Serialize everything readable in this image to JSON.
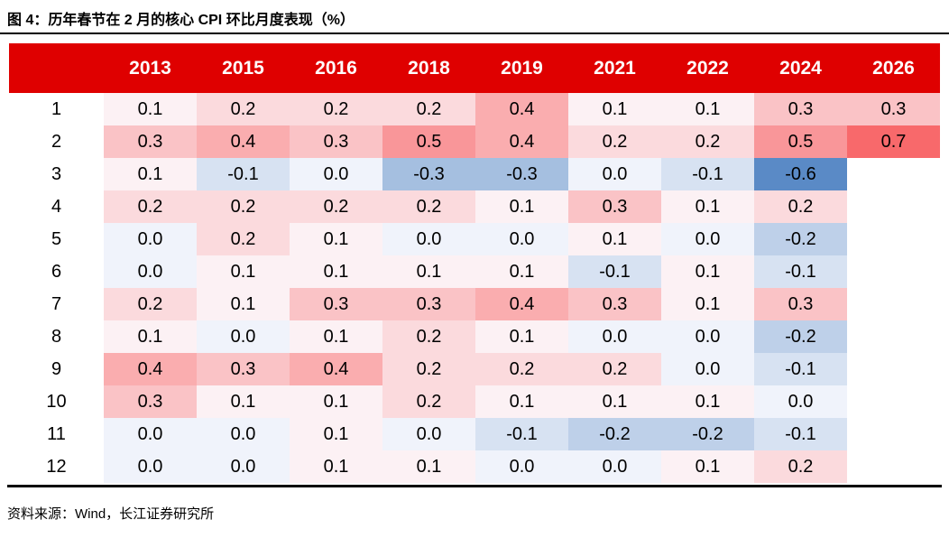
{
  "header": {
    "title": "图 4：历年春节在 2 月的核心 CPI 环比月度表现（%）"
  },
  "footer": {
    "source": "资料来源：Wind，长江证券研究所"
  },
  "theme": {
    "page_bg": "#FFFFFF",
    "title_text": "#000000",
    "rule_color": "#000000",
    "header_bg": "#DF0000",
    "header_text": "#FFFFFF",
    "cell_text": "#000000"
  },
  "chart_data": {
    "type": "heatmap",
    "figure_label": "图 4",
    "title": "历年春节在 2 月的核心 CPI 环比月度表现（%）",
    "unit": "%",
    "columns": [
      "2013",
      "2015",
      "2016",
      "2018",
      "2019",
      "2021",
      "2022",
      "2024",
      "2026"
    ],
    "row_labels": [
      "1",
      "2",
      "3",
      "4",
      "5",
      "6",
      "7",
      "8",
      "9",
      "10",
      "11",
      "12"
    ],
    "values": [
      [
        0.1,
        0.2,
        0.2,
        0.2,
        0.4,
        0.1,
        0.1,
        0.3,
        0.3
      ],
      [
        0.3,
        0.4,
        0.3,
        0.5,
        0.4,
        0.2,
        0.2,
        0.5,
        0.7
      ],
      [
        0.1,
        -0.1,
        0.0,
        -0.3,
        -0.3,
        0.0,
        -0.1,
        -0.6,
        null
      ],
      [
        0.2,
        0.2,
        0.2,
        0.2,
        0.1,
        0.3,
        0.1,
        0.2,
        null
      ],
      [
        0.0,
        0.2,
        0.1,
        0.0,
        0.0,
        0.1,
        0.0,
        -0.2,
        null
      ],
      [
        0.0,
        0.1,
        0.1,
        0.1,
        0.1,
        -0.1,
        0.1,
        -0.1,
        null
      ],
      [
        0.2,
        0.1,
        0.3,
        0.3,
        0.4,
        0.3,
        0.1,
        0.3,
        null
      ],
      [
        0.1,
        0.0,
        0.1,
        0.2,
        0.1,
        0.0,
        0.0,
        -0.2,
        null
      ],
      [
        0.4,
        0.3,
        0.4,
        0.2,
        0.2,
        0.2,
        0.0,
        -0.1,
        null
      ],
      [
        0.3,
        0.1,
        0.1,
        0.2,
        0.1,
        0.1,
        0.1,
        0.0,
        null
      ],
      [
        0.0,
        0.0,
        0.1,
        0.0,
        -0.1,
        -0.2,
        -0.2,
        -0.1,
        null
      ],
      [
        0.0,
        0.0,
        0.1,
        0.1,
        0.0,
        0.0,
        0.1,
        0.2,
        null
      ]
    ],
    "value_format": "1-decimal",
    "color_scale": {
      "min": -0.6,
      "mid": 0.05,
      "max": 0.7,
      "min_color": "#5A8AC6",
      "mid_color": "#FCFCFF",
      "max_color": "#F8696B"
    },
    "legend": "none",
    "source": "资料来源：Wind，长江证券研究所"
  }
}
